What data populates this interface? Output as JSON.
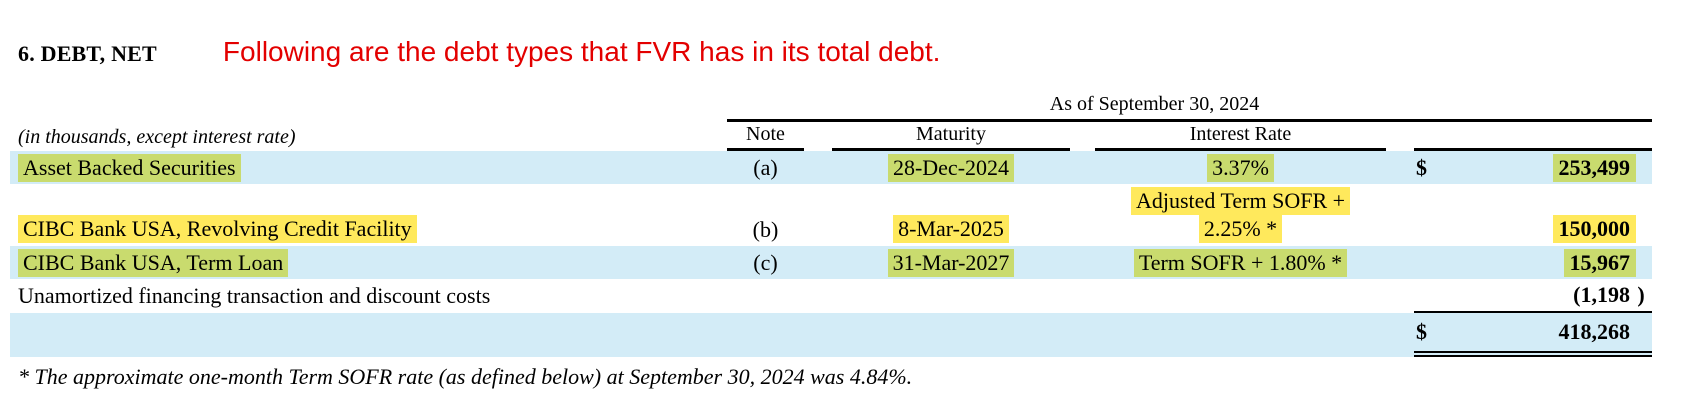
{
  "page": {
    "section_title": "6. DEBT, NET",
    "annotation": "Following are the debt types that FVR has in its total debt."
  },
  "table": {
    "period_header": "As of September 30, 2024",
    "caption": "(in thousands, except interest rate)",
    "columns": {
      "note": "Note",
      "maturity": "Maturity",
      "interest_rate": "Interest Rate"
    },
    "rows": [
      {
        "description": "Asset Backed Securities",
        "note": "(a)",
        "maturity": "28-Dec-2024",
        "interest_rate": "3.37%",
        "currency": "$",
        "amount": "253,499"
      },
      {
        "description": "CIBC Bank USA, Revolving Credit Facility",
        "note": "(b)",
        "maturity": "8-Mar-2025",
        "interest_rate_line1": "Adjusted Term SOFR +",
        "interest_rate_line2": "2.25% *",
        "amount": "150,000"
      },
      {
        "description": "CIBC Bank USA, Term Loan",
        "note": "(c)",
        "maturity": "31-Mar-2027",
        "interest_rate": "Term SOFR + 1.80% *",
        "amount": "15,967"
      },
      {
        "description": "Unamortized financing transaction and discount costs",
        "amount": "(1,198",
        "amount_close": ")"
      }
    ],
    "total": {
      "currency": "$",
      "amount": "418,268"
    },
    "footnote": "* The approximate one-month Term SOFR rate (as defined below) at September 30, 2024 was 4.84%."
  },
  "colors": {
    "row_highlight_blue": "#d3ecf7",
    "text_highlight_green": "#c9db6e",
    "text_highlight_yellow": "#ffe95c",
    "annotation_red": "#e30000"
  }
}
